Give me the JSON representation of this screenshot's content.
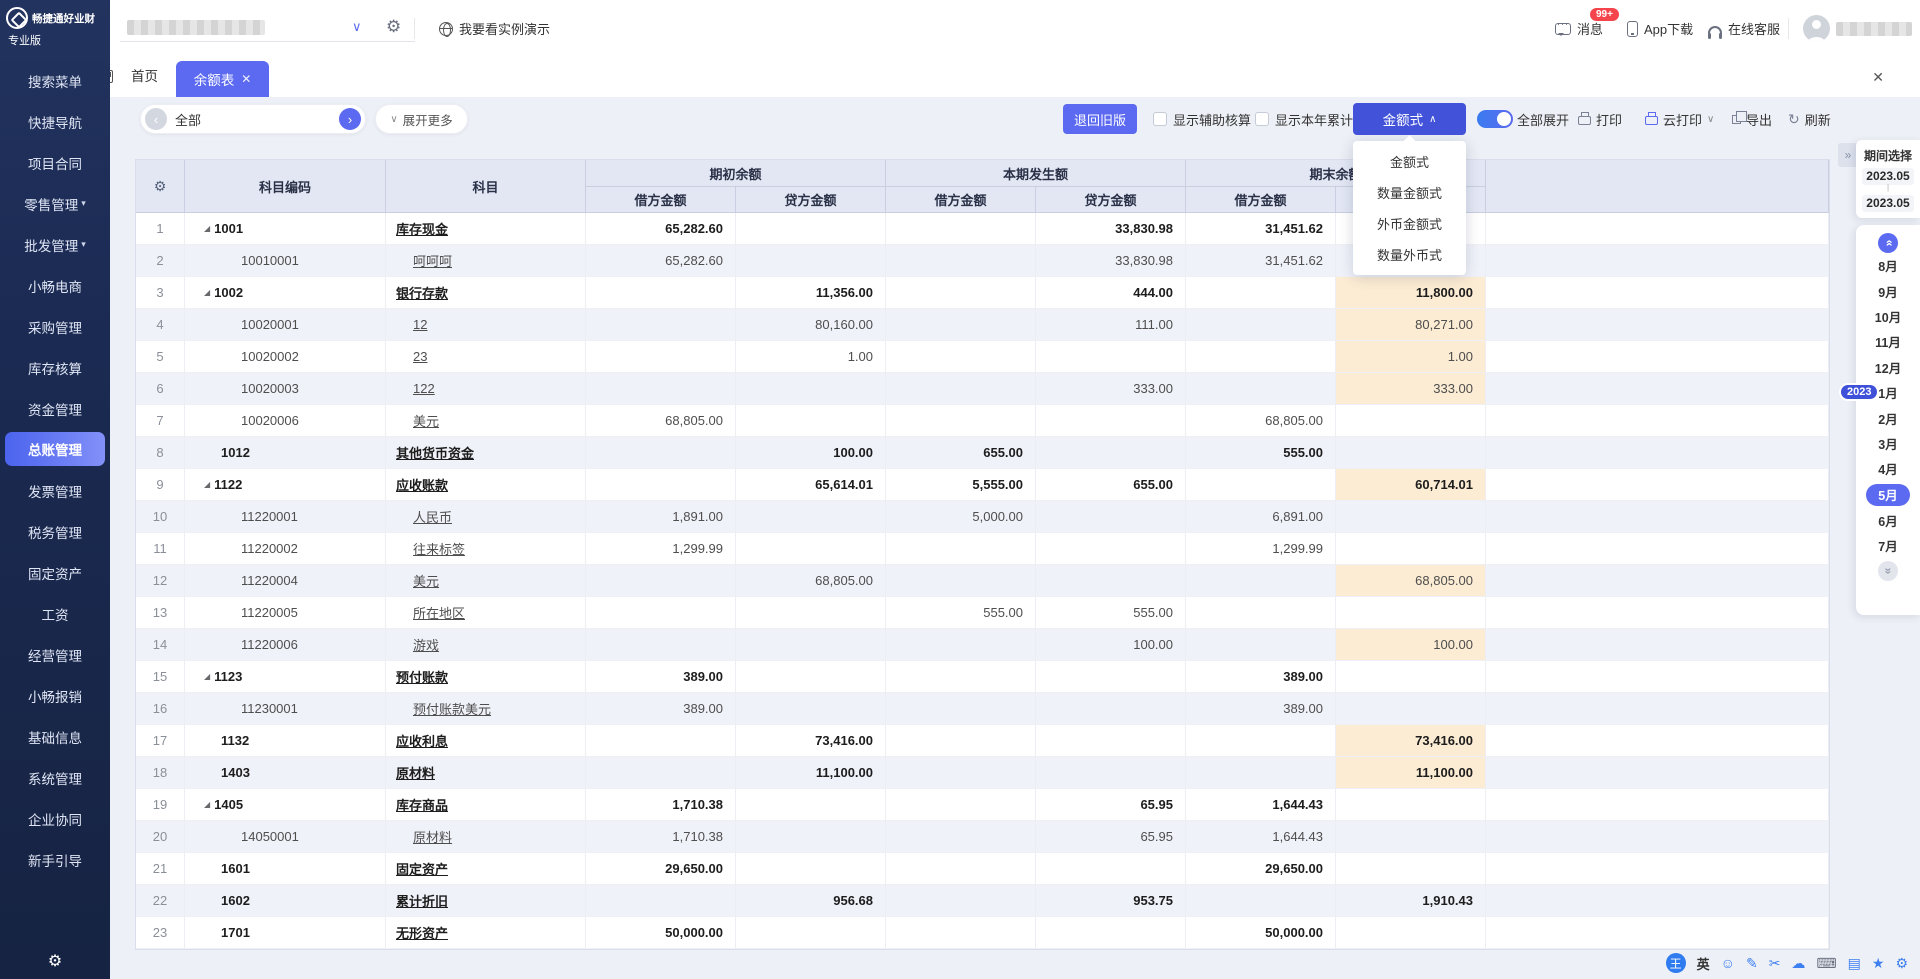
{
  "brand": {
    "name": "畅捷通好业财",
    "edition": "专业版"
  },
  "topbar": {
    "demo_link": "我要看实例演示",
    "messages": "消息",
    "messages_badge": "99+",
    "app_download": "App下载",
    "online_service": "在线客服"
  },
  "sidebar": {
    "items": [
      "搜索菜单",
      "快捷导航",
      "项目合同",
      "零售管理",
      "批发管理",
      "小畅电商",
      "采购管理",
      "库存核算",
      "资金管理",
      "总账管理",
      "发票管理",
      "税务管理",
      "固定资产",
      "工资",
      "经营管理",
      "小畅报销",
      "基础信息",
      "系统管理",
      "企业协同",
      "新手引导"
    ],
    "active_index": 9,
    "caret_indices": [
      3,
      4
    ]
  },
  "tabs": {
    "home": "首页",
    "active": "余额表"
  },
  "toolbar": {
    "filter_value": "全部",
    "expand_more": "展开更多",
    "back_old": "退回旧版",
    "show_aux": "显示辅助核算",
    "show_ytd": "显示本年累计",
    "format_button": "金额式",
    "expand_all": "全部展开",
    "print": "打印",
    "cloud_print": "云打印",
    "export": "导出",
    "refresh": "刷新"
  },
  "format_menu": [
    "金额式",
    "数量金额式",
    "外币金额式",
    "数量外币式"
  ],
  "table": {
    "group_headers": {
      "opening": "期初余额",
      "period": "本期发生额",
      "closing": "期末余额"
    },
    "col_headers": {
      "code": "科目编码",
      "name": "科目",
      "debit": "借方金额",
      "credit": "贷方金额"
    },
    "rows": [
      {
        "n": 1,
        "code": "1001",
        "name": "库存现金",
        "expand": true,
        "bold": true,
        "child": false,
        "v": [
          "65,282.60",
          "",
          "",
          "33,830.98",
          "31,451.62",
          ""
        ],
        "orange": false
      },
      {
        "n": 2,
        "code": "10010001",
        "name": "呵呵呵",
        "expand": false,
        "bold": false,
        "child": true,
        "v": [
          "65,282.60",
          "",
          "",
          "33,830.98",
          "31,451.62",
          ""
        ],
        "orange": false
      },
      {
        "n": 3,
        "code": "1002",
        "name": "银行存款",
        "expand": true,
        "bold": true,
        "child": false,
        "v": [
          "",
          "11,356.00",
          "",
          "444.00",
          "",
          "11,800.00"
        ],
        "orange": true
      },
      {
        "n": 4,
        "code": "10020001",
        "name": "12",
        "expand": false,
        "bold": false,
        "child": true,
        "v": [
          "",
          "80,160.00",
          "",
          "111.00",
          "",
          "80,271.00"
        ],
        "orange": true
      },
      {
        "n": 5,
        "code": "10020002",
        "name": "23",
        "expand": false,
        "bold": false,
        "child": true,
        "v": [
          "",
          "1.00",
          "",
          "",
          "",
          "1.00"
        ],
        "orange": true
      },
      {
        "n": 6,
        "code": "10020003",
        "name": "122",
        "expand": false,
        "bold": false,
        "child": true,
        "v": [
          "",
          "",
          "",
          "333.00",
          "",
          "333.00"
        ],
        "orange": true
      },
      {
        "n": 7,
        "code": "10020006",
        "name": "美元",
        "expand": false,
        "bold": false,
        "child": true,
        "v": [
          "68,805.00",
          "",
          "",
          "",
          "68,805.00",
          ""
        ],
        "orange": false
      },
      {
        "n": 8,
        "code": "1012",
        "name": "其他货币资金",
        "expand": false,
        "bold": true,
        "child": false,
        "v": [
          "",
          "100.00",
          "655.00",
          "",
          "555.00",
          ""
        ],
        "orange": false
      },
      {
        "n": 9,
        "code": "1122",
        "name": "应收账款",
        "expand": true,
        "bold": true,
        "child": false,
        "v": [
          "",
          "65,614.01",
          "5,555.00",
          "655.00",
          "",
          "60,714.01"
        ],
        "orange": true
      },
      {
        "n": 10,
        "code": "11220001",
        "name": "人民币",
        "expand": false,
        "bold": false,
        "child": true,
        "v": [
          "1,891.00",
          "",
          "5,000.00",
          "",
          "6,891.00",
          ""
        ],
        "orange": false
      },
      {
        "n": 11,
        "code": "11220002",
        "name": "往来标签",
        "expand": false,
        "bold": false,
        "child": true,
        "v": [
          "1,299.99",
          "",
          "",
          "",
          "1,299.99",
          ""
        ],
        "orange": false
      },
      {
        "n": 12,
        "code": "11220004",
        "name": "美元",
        "expand": false,
        "bold": false,
        "child": true,
        "v": [
          "",
          "68,805.00",
          "",
          "",
          "",
          "68,805.00"
        ],
        "orange": true
      },
      {
        "n": 13,
        "code": "11220005",
        "name": "所在地区",
        "expand": false,
        "bold": false,
        "child": true,
        "v": [
          "",
          "",
          "555.00",
          "555.00",
          "",
          ""
        ],
        "orange": false
      },
      {
        "n": 14,
        "code": "11220006",
        "name": "游戏",
        "expand": false,
        "bold": false,
        "child": true,
        "v": [
          "",
          "",
          "",
          "100.00",
          "",
          "100.00"
        ],
        "orange": true
      },
      {
        "n": 15,
        "code": "1123",
        "name": "预付账款",
        "expand": true,
        "bold": true,
        "child": false,
        "v": [
          "389.00",
          "",
          "",
          "",
          "389.00",
          ""
        ],
        "orange": false
      },
      {
        "n": 16,
        "code": "11230001",
        "name": "预付账款美元",
        "expand": false,
        "bold": false,
        "child": true,
        "v": [
          "389.00",
          "",
          "",
          "",
          "389.00",
          ""
        ],
        "orange": false
      },
      {
        "n": 17,
        "code": "1132",
        "name": "应收利息",
        "expand": false,
        "bold": true,
        "child": false,
        "v": [
          "",
          "73,416.00",
          "",
          "",
          "",
          "73,416.00"
        ],
        "orange": true
      },
      {
        "n": 18,
        "code": "1403",
        "name": "原材料",
        "expand": false,
        "bold": true,
        "child": false,
        "v": [
          "",
          "11,100.00",
          "",
          "",
          "",
          "11,100.00"
        ],
        "orange": true
      },
      {
        "n": 19,
        "code": "1405",
        "name": "库存商品",
        "expand": true,
        "bold": true,
        "child": false,
        "v": [
          "1,710.38",
          "",
          "",
          "65.95",
          "1,644.43",
          ""
        ],
        "orange": false
      },
      {
        "n": 20,
        "code": "14050001",
        "name": "原材料",
        "expand": false,
        "bold": false,
        "child": true,
        "v": [
          "1,710.38",
          "",
          "",
          "65.95",
          "1,644.43",
          ""
        ],
        "orange": false
      },
      {
        "n": 21,
        "code": "1601",
        "name": "固定资产",
        "expand": false,
        "bold": true,
        "child": false,
        "v": [
          "29,650.00",
          "",
          "",
          "",
          "29,650.00",
          ""
        ],
        "orange": false
      },
      {
        "n": 22,
        "code": "1602",
        "name": "累计折旧",
        "expand": false,
        "bold": true,
        "child": false,
        "v": [
          "",
          "956.68",
          "",
          "953.75",
          "",
          "1,910.43"
        ],
        "orange": false
      },
      {
        "n": 23,
        "code": "1701",
        "name": "无形资产",
        "expand": false,
        "bold": true,
        "child": false,
        "v": [
          "50,000.00",
          "",
          "",
          "",
          "50,000.00",
          ""
        ],
        "orange": false
      }
    ]
  },
  "period": {
    "title": "期间选择",
    "from": "2023.05",
    "to": "2023.05",
    "year_badge": "2023",
    "months": [
      "8月",
      "9月",
      "10月",
      "11月",
      "12月",
      "1月",
      "2月",
      "3月",
      "4月",
      "5月",
      "6月",
      "7月"
    ],
    "selected_month": "5月"
  },
  "taskbar": {
    "ime": "王",
    "lang": "英",
    "icons": [
      "smiley",
      "pen",
      "scissors",
      "cloud",
      "keyboard",
      "panel",
      "star",
      "gear"
    ]
  },
  "colors": {
    "accent": "#5b6af0",
    "format_button": "#4353d9",
    "orange_cell": "#fcecd3",
    "badge_red": "#f5454c",
    "sidebar": "#1b2a52"
  }
}
